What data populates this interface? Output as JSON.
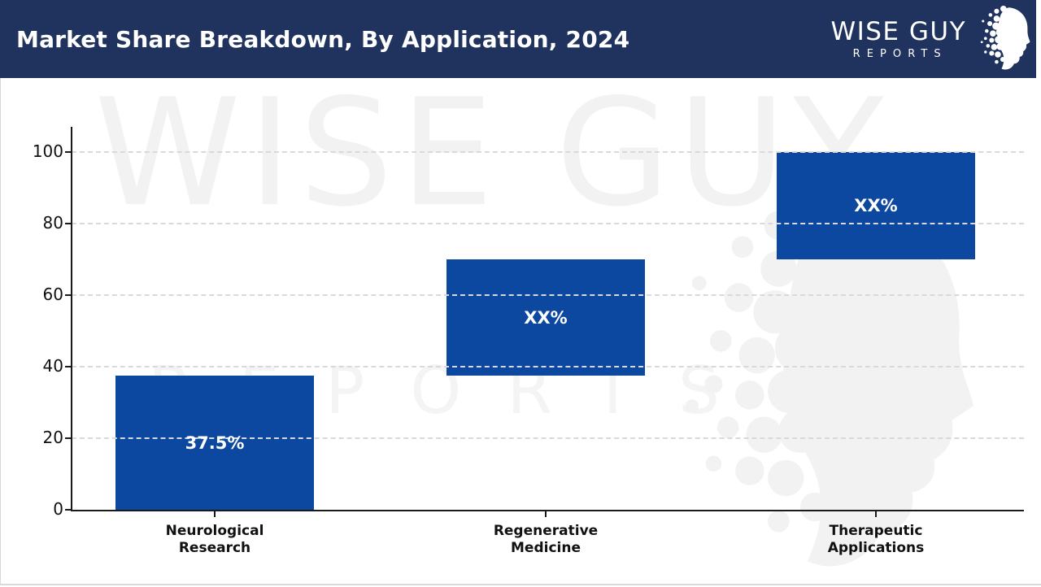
{
  "header": {
    "title": "Market Share Breakdown, By Application, 2024",
    "bg_color": "#20335e",
    "logo": {
      "line1": "WISE GUY",
      "line2": "REPORTS"
    }
  },
  "watermark": {
    "line1": "WISE GUY",
    "line2": "REPORTS"
  },
  "chart_data": {
    "type": "bar",
    "subtype": "waterfall_segments",
    "title": "Market Share Breakdown, By Application, 2024",
    "categories": [
      "Neurological Research",
      "Regenerative Medicine",
      "Therapeutic Applications"
    ],
    "categories_lines": [
      [
        "Neurological",
        "Research"
      ],
      [
        "Regenerative",
        "Medicine"
      ],
      [
        "Therapeutic",
        "Applications"
      ]
    ],
    "segments": [
      {
        "category": "Neurological Research",
        "from": 0,
        "to": 37.5,
        "size": 37.5,
        "label": "37.5%"
      },
      {
        "category": "Regenerative Medicine",
        "from": 37.5,
        "to": 70,
        "size": 32.5,
        "label": "XX%"
      },
      {
        "category": "Therapeutic Applications",
        "from": 70,
        "to": 100,
        "size": 30,
        "label": "XX%"
      }
    ],
    "xlabel": "",
    "ylabel": "",
    "ylim": [
      0,
      100
    ],
    "yticks": [
      0,
      20,
      40,
      60,
      80,
      100
    ],
    "grid": {
      "axis": "y",
      "style": "dashed",
      "color": "#d9d9d9",
      "above_bars": true
    },
    "legend": null,
    "bar_color": "#0c47a0",
    "bar_label_color": "#ffffff",
    "axis_color": "#1a1a1a"
  }
}
